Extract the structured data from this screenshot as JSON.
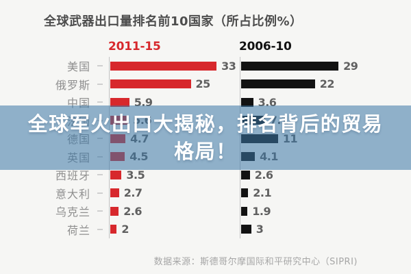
{
  "title": "全球武器出口量排名前10国家（所占比例%）",
  "overlay": {
    "line1": "全球军火出口大揭秘，排名背后的贸易",
    "line2": "格局！",
    "background_color": "rgba(58,118,166,0.55)",
    "text_color": "#ffffff"
  },
  "footer": "数据来源：斯德哥尔摩国际和平研究中心（SIPRI)",
  "colors": {
    "series_2011_15": "#d7282c",
    "series_2006_10": "#121212",
    "value_label": "#606060",
    "country_label": "#8f8f8f",
    "axis_line": "#c3c3c3",
    "background": "#f6f6f4"
  },
  "chart_data": {
    "type": "bar",
    "orientation": "horizontal",
    "title": "全球武器出口量排名前10国家（所占比例%）",
    "value_unit": "%",
    "xlim": [
      0,
      40
    ],
    "grid": false,
    "legend_position": "column-headers-top",
    "categories": [
      "美国",
      "俄罗斯",
      "中国",
      "法国",
      "德国",
      "英国",
      "西班牙",
      "意大利",
      "乌克兰",
      "荷兰"
    ],
    "series": [
      {
        "name": "2011-15",
        "color": "#d7282c",
        "values": [
          33,
          25,
          5.9,
          5.6,
          4.7,
          4.5,
          3.5,
          2.7,
          2.6,
          2
        ]
      },
      {
        "name": "2006-10",
        "color": "#121212",
        "values": [
          29,
          22,
          3.6,
          7.1,
          11,
          4.1,
          2.6,
          2.1,
          1.9,
          3
        ]
      }
    ],
    "note": "第四行（法国）大部分被中部蓝色标题横幅遮挡"
  }
}
